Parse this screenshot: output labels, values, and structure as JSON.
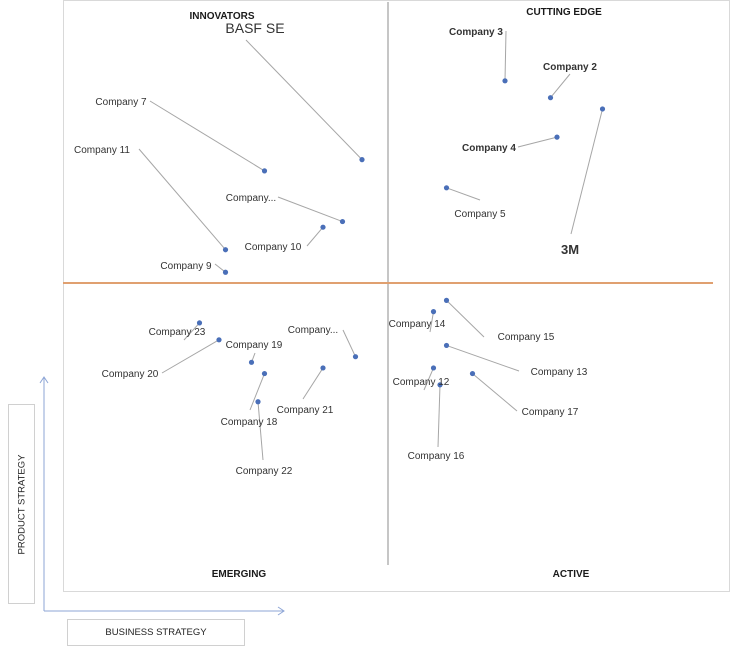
{
  "chart_data": {
    "type": "scatter",
    "quadrants": {
      "top_left": "INNOVATORS",
      "top_right": "CUTTING EDGE",
      "bottom_left": "EMERGING",
      "bottom_right": "ACTIVE"
    },
    "xlabel": "BUSINESS STRATEGY",
    "ylabel": "PRODUCT STRATEGY",
    "points": [
      {
        "name": "BASF SE",
        "x": 0.46,
        "y": 0.72
      },
      {
        "name": "Company 7",
        "x": 0.31,
        "y": 0.7
      },
      {
        "name": "Company 11",
        "x": 0.25,
        "y": 0.56
      },
      {
        "name": "Company...",
        "x": 0.43,
        "y": 0.61
      },
      {
        "name": "Company 10",
        "x": 0.4,
        "y": 0.6
      },
      {
        "name": "Company 9",
        "x": 0.25,
        "y": 0.52
      },
      {
        "name": "Company 3",
        "x": 0.68,
        "y": 0.86
      },
      {
        "name": "Company 2",
        "x": 0.75,
        "y": 0.83
      },
      {
        "name": "3M",
        "x": 0.83,
        "y": 0.81
      },
      {
        "name": "Company 4",
        "x": 0.76,
        "y": 0.76
      },
      {
        "name": "Company 5",
        "x": 0.59,
        "y": 0.67
      },
      {
        "name": "Company 23",
        "x": 0.21,
        "y": 0.43
      },
      {
        "name": "Company 20",
        "x": 0.24,
        "y": 0.4
      },
      {
        "name": "Company 19",
        "x": 0.29,
        "y": 0.36
      },
      {
        "name": "Company 21",
        "x": 0.4,
        "y": 0.35
      },
      {
        "name": "Company 18",
        "x": 0.31,
        "y": 0.34
      },
      {
        "name": "Company 22",
        "x": 0.3,
        "y": 0.29
      },
      {
        "name": "Company...",
        "x": 0.45,
        "y": 0.37
      },
      {
        "name": "Company 14",
        "x": 0.57,
        "y": 0.45
      },
      {
        "name": "Company 15",
        "x": 0.59,
        "y": 0.47
      },
      {
        "name": "Company 13",
        "x": 0.59,
        "y": 0.39
      },
      {
        "name": "Company 12",
        "x": 0.57,
        "y": 0.35
      },
      {
        "name": "Company 17",
        "x": 0.63,
        "y": 0.34
      },
      {
        "name": "Company 16",
        "x": 0.58,
        "y": 0.32
      }
    ],
    "colors": {
      "point": "#4a6fb8",
      "leader": "#a6a6a6",
      "h_divider": "#e0a070",
      "v_divider": "#8c8c8c",
      "axis_arrow": "#8ea6d6"
    }
  }
}
